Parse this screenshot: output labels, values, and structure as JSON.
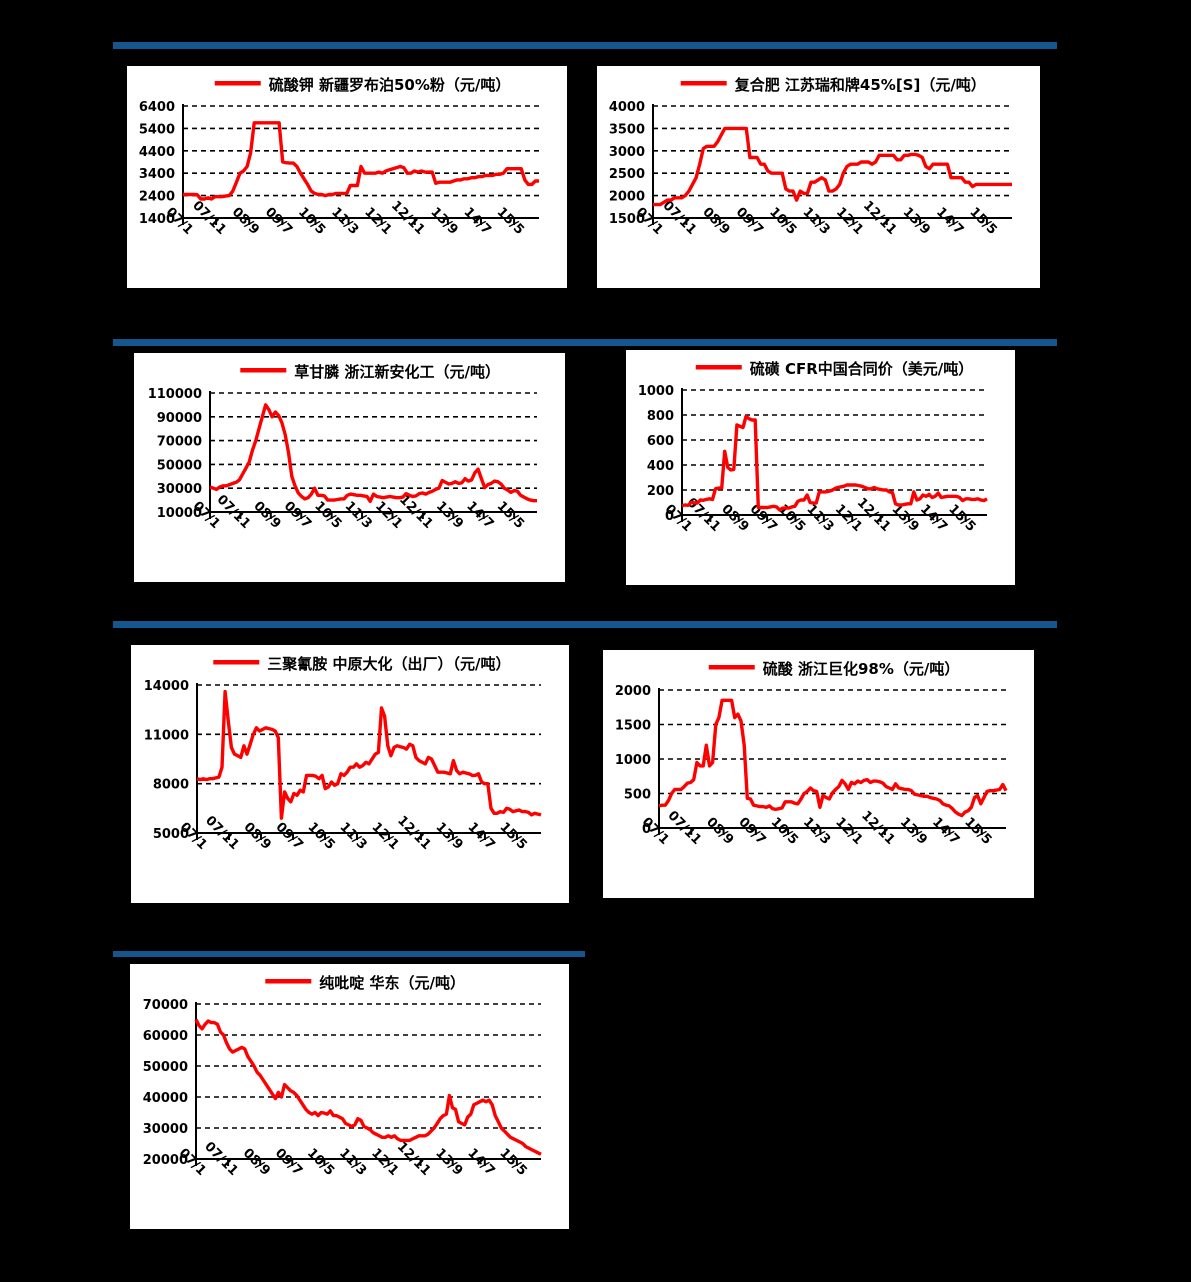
{
  "page": {
    "background_color": "#000000",
    "separator_color": "#16568f",
    "panel_background": "#ffffff",
    "text_color": "#000000",
    "series_color": "#ff0000"
  },
  "chart_data": [
    {
      "type": "line",
      "title": "硫酸钾 新疆罗布泊50%粉（元/吨）",
      "unit": "元/吨",
      "legend_position": "top",
      "grid": "horizontal-dashed",
      "x_labels": [
        "07/1",
        "07/11",
        "08/9",
        "09/7",
        "10/5",
        "11/3",
        "12/1",
        "12/11",
        "13/9",
        "14/7",
        "15/5"
      ],
      "yticks": [
        1400,
        2400,
        3400,
        4400,
        5400,
        6400
      ],
      "ylim": [
        1400,
        6400
      ],
      "values": [
        2450,
        2450,
        2450,
        2450,
        2440,
        2250,
        2250,
        2300,
        2250,
        2350,
        2350,
        2350,
        2380,
        2400,
        2600,
        3000,
        3400,
        3500,
        3700,
        4300,
        5650,
        5650,
        5650,
        5650,
        5650,
        5650,
        5650,
        5650,
        3900,
        3870,
        3850,
        3850,
        3700,
        3400,
        3150,
        2900,
        2600,
        2500,
        2450,
        2450,
        2400,
        2450,
        2450,
        2500,
        2500,
        2500,
        2500,
        2850,
        2850,
        2850,
        3700,
        3400,
        3400,
        3400,
        3400,
        3450,
        3400,
        3500,
        3550,
        3600,
        3650,
        3700,
        3650,
        3400,
        3400,
        3500,
        3450,
        3500,
        3450,
        3450,
        3450,
        2950,
        3000,
        3000,
        3000,
        3000,
        3050,
        3100,
        3100,
        3150,
        3150,
        3200,
        3200,
        3250,
        3250,
        3300,
        3300,
        3300,
        3350,
        3350,
        3400,
        3600,
        3600,
        3600,
        3600,
        3600,
        3100,
        2900,
        2900,
        3050,
        3050
      ]
    },
    {
      "type": "line",
      "title": "复合肥 江苏瑞和牌45%[S]（元/吨）",
      "unit": "元/吨",
      "legend_position": "top",
      "grid": "horizontal-dashed",
      "x_labels": [
        "07/1",
        "07/11",
        "08/9",
        "09/7",
        "10/5",
        "11/3",
        "12/1",
        "12/11",
        "13/9",
        "14/7",
        "15/5"
      ],
      "yticks": [
        1500,
        2000,
        2500,
        3000,
        3500,
        4000
      ],
      "ylim": [
        1500,
        4000
      ],
      "values": [
        1800,
        1800,
        1800,
        1850,
        1900,
        1900,
        1950,
        1950,
        1950,
        2000,
        2100,
        2250,
        2400,
        2700,
        3050,
        3100,
        3100,
        3100,
        3200,
        3350,
        3500,
        3500,
        3500,
        3500,
        3500,
        3500,
        3500,
        2850,
        2850,
        2850,
        2700,
        2700,
        2550,
        2500,
        2500,
        2500,
        2500,
        2150,
        2100,
        2100,
        1900,
        2100,
        2050,
        2050,
        2300,
        2300,
        2350,
        2400,
        2350,
        2100,
        2100,
        2150,
        2250,
        2500,
        2650,
        2700,
        2700,
        2700,
        2750,
        2750,
        2750,
        2700,
        2750,
        2900,
        2900,
        2900,
        2900,
        2900,
        2800,
        2800,
        2900,
        2900,
        2920,
        2920,
        2900,
        2850,
        2650,
        2600,
        2700,
        2700,
        2700,
        2700,
        2700,
        2400,
        2400,
        2400,
        2400,
        2300,
        2300,
        2200,
        2250,
        2250,
        2250,
        2250,
        2250,
        2250,
        2250,
        2250,
        2250,
        2250,
        2250
      ]
    },
    {
      "type": "line",
      "title": "草甘膦 浙江新安化工（元/吨）",
      "unit": "元/吨",
      "legend_position": "top",
      "grid": "horizontal-dashed",
      "x_labels": [
        "07/1",
        "07/11",
        "08/9",
        "09/7",
        "10/5",
        "11/3",
        "12/1",
        "12/11",
        "13/9",
        "14/7",
        "15/5"
      ],
      "yticks": [
        10000,
        30000,
        50000,
        70000,
        90000,
        110000
      ],
      "ylim": [
        10000,
        110000
      ],
      "values": [
        31000,
        30000,
        29000,
        31000,
        32000,
        32000,
        33000,
        34000,
        35000,
        37000,
        42000,
        47000,
        52000,
        62000,
        70000,
        80000,
        90000,
        100000,
        96000,
        90000,
        94000,
        91000,
        85000,
        75000,
        60000,
        40000,
        32000,
        26000,
        23000,
        21000,
        22000,
        25000,
        30000,
        24000,
        24000,
        23500,
        20000,
        20000,
        20000,
        20500,
        21000,
        21000,
        24000,
        25000,
        24500,
        24000,
        24000,
        23500,
        23000,
        19000,
        25000,
        23000,
        22500,
        22000,
        22500,
        23000,
        22500,
        22000,
        22000,
        22500,
        25500,
        24000,
        23000,
        23500,
        25500,
        26000,
        25000,
        26500,
        27500,
        29000,
        30000,
        36500,
        35000,
        33500,
        34000,
        35500,
        34000,
        34500,
        38000,
        36000,
        37000,
        43000,
        46000,
        38000,
        30500,
        33000,
        34000,
        36000,
        35500,
        33500,
        30000,
        28500,
        26500,
        28000,
        27500,
        24000,
        22500,
        21000,
        20000,
        19500,
        19500
      ]
    },
    {
      "type": "line",
      "title": "硫磺 CFR中国合同价（美元/吨）",
      "unit": "美元/吨",
      "legend_position": "top",
      "grid": "horizontal-dashed",
      "x_labels": [
        "07/1",
        "07/11",
        "08/9",
        "09/7",
        "10/5",
        "11/3",
        "12/1",
        "12/11",
        "13/9",
        "14/7",
        "15/5"
      ],
      "yticks": [
        0,
        200,
        400,
        600,
        800,
        1000
      ],
      "ylim": [
        0,
        1000
      ],
      "values": [
        75,
        80,
        78,
        100,
        98,
        95,
        120,
        118,
        125,
        130,
        125,
        210,
        215,
        215,
        510,
        380,
        360,
        365,
        720,
        710,
        700,
        790,
        770,
        760,
        760,
        60,
        60,
        60,
        60,
        65,
        70,
        65,
        40,
        55,
        55,
        55,
        65,
        70,
        110,
        120,
        120,
        160,
        100,
        95,
        95,
        185,
        185,
        185,
        190,
        195,
        210,
        220,
        225,
        230,
        240,
        240,
        240,
        240,
        235,
        230,
        220,
        210,
        210,
        220,
        210,
        205,
        200,
        200,
        185,
        180,
        90,
        80,
        80,
        85,
        90,
        90,
        185,
        120,
        130,
        160,
        150,
        165,
        140,
        150,
        175,
        140,
        145,
        150,
        150,
        150,
        150,
        140,
        115,
        130,
        130,
        125,
        125,
        130,
        120,
        115,
        130
      ]
    },
    {
      "type": "line",
      "title": "三聚氰胺 中原大化（出厂）（元/吨）",
      "unit": "元/吨",
      "legend_position": "top",
      "grid": "horizontal-dashed",
      "x_labels": [
        "07/1",
        "07/11",
        "08/9",
        "09/7",
        "10/5",
        "11/3",
        "12/1",
        "12/11",
        "13/9",
        "14/7",
        "15/5"
      ],
      "yticks": [
        5000,
        8000,
        11000,
        14000
      ],
      "ylim": [
        5000,
        14000
      ],
      "values": [
        8300,
        8250,
        8300,
        8250,
        8300,
        8300,
        8350,
        8400,
        9000,
        13600,
        11800,
        10200,
        9800,
        9700,
        9600,
        10300,
        9800,
        10400,
        11000,
        11400,
        11200,
        11300,
        11400,
        11350,
        11300,
        11200,
        10800,
        5900,
        7500,
        7100,
        6900,
        7400,
        7300,
        7600,
        7500,
        8500,
        8500,
        8500,
        8450,
        8300,
        8500,
        7700,
        7800,
        8100,
        7900,
        8000,
        8600,
        8500,
        8700,
        9000,
        9000,
        9200,
        9000,
        9100,
        9300,
        9200,
        9500,
        9800,
        9900,
        12600,
        12100,
        10300,
        9700,
        10200,
        10300,
        10250,
        10200,
        10100,
        10400,
        10300,
        9600,
        9400,
        9300,
        9200,
        9600,
        9500,
        9100,
        8700,
        8700,
        8700,
        8650,
        8600,
        9400,
        8800,
        8600,
        8700,
        8650,
        8600,
        8500,
        8500,
        8600,
        8100,
        8000,
        8000,
        6500,
        6200,
        6200,
        6300,
        6250,
        6500,
        6450,
        6300,
        6350,
        6400,
        6300,
        6300,
        6250,
        6100,
        6200,
        6150,
        6100
      ]
    },
    {
      "type": "line",
      "title": "硫酸 浙江巨化98%（元/吨）",
      "unit": "元/吨",
      "legend_position": "top",
      "grid": "horizontal-dashed",
      "x_labels": [
        "07/1",
        "07/11",
        "08/9",
        "09/7",
        "10/5",
        "11/3",
        "12/1",
        "12/11",
        "13/9",
        "14/7",
        "15/5"
      ],
      "yticks": [
        0,
        500,
        1000,
        1500,
        2000
      ],
      "ylim": [
        0,
        2000
      ],
      "values": [
        320,
        330,
        330,
        400,
        500,
        560,
        560,
        560,
        600,
        650,
        660,
        700,
        950,
        900,
        900,
        1200,
        900,
        950,
        1500,
        1600,
        1850,
        1850,
        1850,
        1850,
        1600,
        1650,
        1550,
        1200,
        430,
        420,
        330,
        320,
        310,
        310,
        300,
        320,
        280,
        270,
        280,
        290,
        380,
        380,
        380,
        360,
        350,
        420,
        500,
        530,
        580,
        540,
        530,
        300,
        470,
        440,
        420,
        510,
        560,
        600,
        690,
        640,
        560,
        660,
        640,
        680,
        660,
        690,
        700,
        660,
        680,
        680,
        670,
        650,
        600,
        580,
        560,
        640,
        580,
        570,
        560,
        560,
        540,
        490,
        480,
        470,
        460,
        460,
        440,
        430,
        420,
        400,
        350,
        330,
        320,
        280,
        230,
        200,
        180,
        230,
        250,
        300,
        440,
        470,
        350,
        440,
        530,
        540,
        540,
        550,
        560,
        630,
        540
      ]
    },
    {
      "type": "line",
      "title": "纯吡啶 华东（元/吨）",
      "unit": "元/吨",
      "legend_position": "top",
      "grid": "horizontal-dashed",
      "x_labels": [
        "07/1",
        "07/11",
        "08/9",
        "09/7",
        "10/5",
        "11/3",
        "12/1",
        "12/11",
        "13/9",
        "14/7",
        "15/5"
      ],
      "yticks": [
        20000,
        30000,
        40000,
        50000,
        60000,
        70000
      ],
      "ylim": [
        20000,
        70000
      ],
      "values": [
        65000,
        63000,
        62000,
        63500,
        64500,
        64000,
        64000,
        63500,
        61000,
        60000,
        57500,
        55500,
        54500,
        55000,
        55500,
        56000,
        55500,
        53000,
        51500,
        50000,
        48000,
        47000,
        45500,
        44000,
        42500,
        41000,
        39500,
        41500,
        40000,
        44000,
        43000,
        42000,
        41500,
        40500,
        39000,
        37500,
        36000,
        35000,
        34500,
        35000,
        34000,
        35000,
        34800,
        34500,
        35500,
        34000,
        34000,
        33500,
        33000,
        31500,
        31000,
        30500,
        31000,
        33000,
        32500,
        30500,
        30000,
        29500,
        28500,
        28000,
        27500,
        27000,
        27000,
        27500,
        27000,
        27500,
        26500,
        26000,
        26000,
        26000,
        26000,
        26500,
        27000,
        27500,
        27500,
        27500,
        28000,
        29000,
        30000,
        31500,
        33000,
        34000,
        34500,
        40500,
        36500,
        36000,
        32000,
        31500,
        31000,
        33500,
        34500,
        37500,
        38000,
        38500,
        39000,
        38500,
        39000,
        37500,
        34000,
        32000,
        30000,
        29000,
        28000,
        27000,
        26500,
        26000,
        25500,
        25000,
        24000,
        23500,
        23000,
        22500,
        22000,
        21500
      ]
    }
  ]
}
